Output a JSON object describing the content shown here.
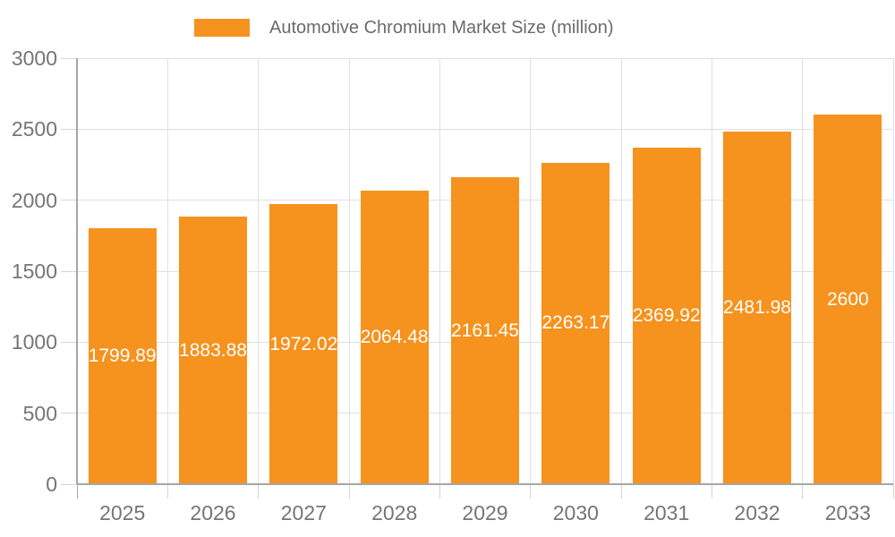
{
  "chart_data": {
    "type": "bar",
    "title": "Automotive Chromium Market Size (million)",
    "legend": {
      "label": "Automotive Chromium Market Size (million)",
      "position": "top"
    },
    "categories": [
      "2025",
      "2026",
      "2027",
      "2028",
      "2029",
      "2030",
      "2031",
      "2032",
      "2033"
    ],
    "series": [
      {
        "name": "Automotive Chromium Market Size (million)",
        "values": [
          1799.89,
          1883.88,
          1972.02,
          2064.48,
          2161.45,
          2263.17,
          2369.92,
          2481.98,
          2600
        ],
        "value_labels": [
          "1799.89",
          "1883.88",
          "1972.02",
          "2064.48",
          "2161.45",
          "2263.17",
          "2369.92",
          "2481.98",
          "2600"
        ]
      }
    ],
    "xlabel": "",
    "ylabel": "",
    "ylim": [
      0,
      3000
    ],
    "yticks": [
      0,
      500,
      1000,
      1500,
      2000,
      2500,
      3000
    ],
    "grid": true,
    "colors": {
      "bar": "#F6921E",
      "value_label": "#FFFFFF",
      "axis_label": "#757575",
      "legend_label": "#6B6B6B",
      "gridline": "#E0E0E0",
      "tick": "#D4D4D4",
      "axis_line": "#A6A6A6",
      "background": "#FFFFFF"
    }
  }
}
